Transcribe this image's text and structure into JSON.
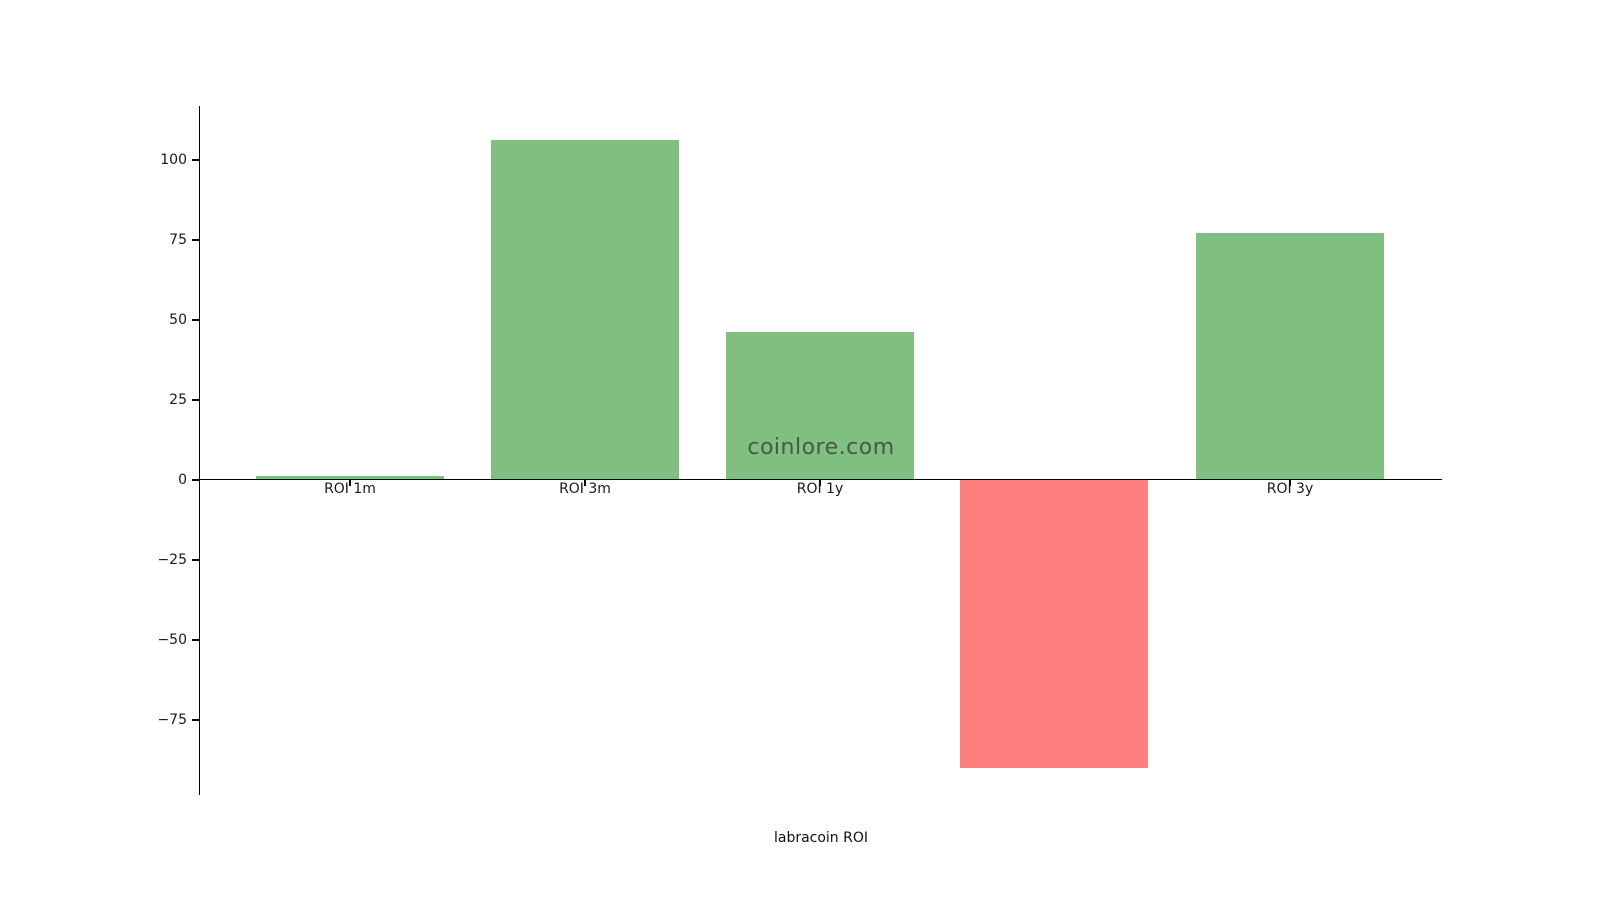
{
  "figure": {
    "watermark": "coinlore.com",
    "bottom_title": "labracoin ROI"
  },
  "chart_data": {
    "type": "bar",
    "title": "labracoin ROI",
    "title_position": "bottom-center",
    "categories": [
      "ROI 1m",
      "ROI 3m",
      "ROI 1y",
      "",
      "ROI 3y"
    ],
    "values": [
      1.4,
      106.3,
      46.4,
      -90.1,
      77.3
    ],
    "xlabel": "",
    "ylabel": "",
    "y_ticks": [
      100,
      75,
      50,
      25,
      0,
      -25,
      -50,
      -75
    ],
    "ylim": [
      -98,
      117
    ],
    "grid": false,
    "legend": false,
    "bar_color_positive": "#7fbf7f",
    "bar_color_negative": "#ff7f7f",
    "axis_color": "#000000",
    "tick_text_color": "#1a1a1a",
    "watermark_text": "coinlore.com",
    "background_color": "#ffffff"
  }
}
